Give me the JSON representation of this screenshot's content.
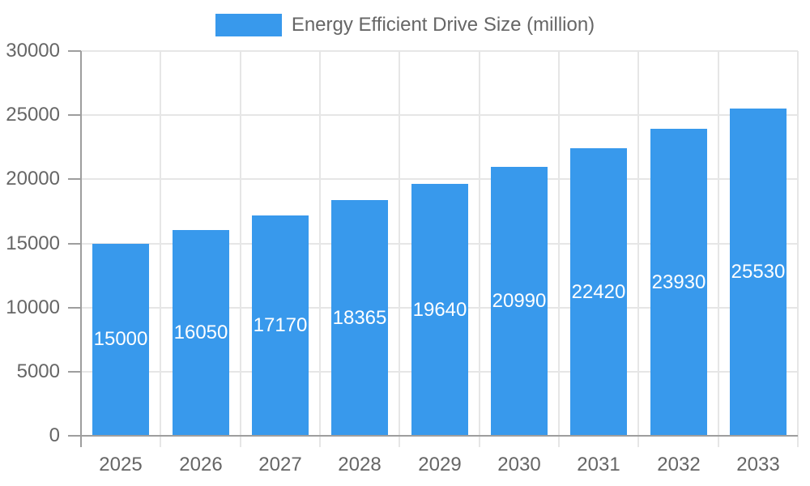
{
  "chart_data": {
    "type": "bar",
    "title": "Energy Efficient Drive Size (million)",
    "categories": [
      "2025",
      "2026",
      "2027",
      "2028",
      "2029",
      "2030",
      "2031",
      "2032",
      "2033"
    ],
    "values": [
      15000,
      16050,
      17170,
      18365,
      19640,
      20990,
      22420,
      23930,
      25530
    ],
    "series": [
      {
        "name": "Energy Efficient Drive Size (million)",
        "values": [
          15000,
          16050,
          17170,
          18365,
          19640,
          20990,
          22420,
          23930,
          25530
        ]
      }
    ],
    "xlabel": "",
    "ylabel": "",
    "ylim": [
      0,
      30000
    ],
    "ytick_step": 5000,
    "ytick_labels": [
      "0",
      "5000",
      "10000",
      "15000",
      "20000",
      "25000",
      "30000"
    ],
    "grid": true,
    "legend_position": "top",
    "value_labels_inside_bars": true,
    "colors": {
      "bar": "#3899ec",
      "grid_line": "#e6e6e6",
      "axis_line": "#9e9e9e",
      "tick_label": "#666666",
      "legend_label": "#666666",
      "value_label": "#ffffff",
      "background": "#ffffff"
    }
  }
}
